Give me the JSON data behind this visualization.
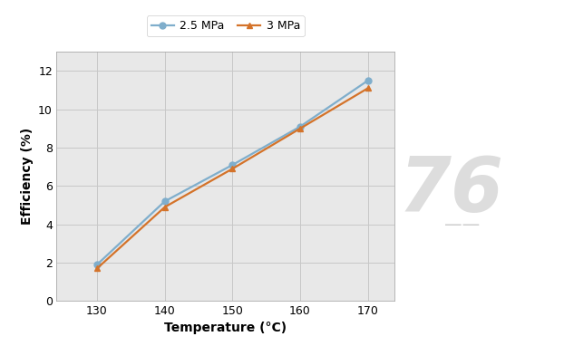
{
  "temperature": [
    130,
    140,
    150,
    160,
    170
  ],
  "efficiency_2_5mpa": [
    1.9,
    5.2,
    7.1,
    9.1,
    11.5
  ],
  "efficiency_3mpa": [
    1.7,
    4.9,
    6.9,
    9.0,
    11.1
  ],
  "line_color_2_5mpa": "#7faecc",
  "line_color_3mpa": "#d4732a",
  "marker_2_5mpa": "o",
  "marker_3mpa": "^",
  "label_2_5mpa": "2.5 MPa",
  "label_3mpa": "3 MPa",
  "xlabel": "Temperature (°C)",
  "ylabel": "Efficiency (%)",
  "xlim": [
    124,
    174
  ],
  "ylim": [
    0,
    13
  ],
  "yticks": [
    0,
    2,
    4,
    6,
    8,
    10,
    12
  ],
  "xticks": [
    130,
    140,
    150,
    160,
    170
  ],
  "grid_color": "#c8c8c8",
  "plot_bg_color": "#e8e8e8",
  "fig_bg_color": "#ffffff",
  "linewidth": 1.6,
  "markersize": 5,
  "xlabel_fontsize": 10,
  "ylabel_fontsize": 10,
  "tick_fontsize": 9,
  "legend_fontsize": 9
}
